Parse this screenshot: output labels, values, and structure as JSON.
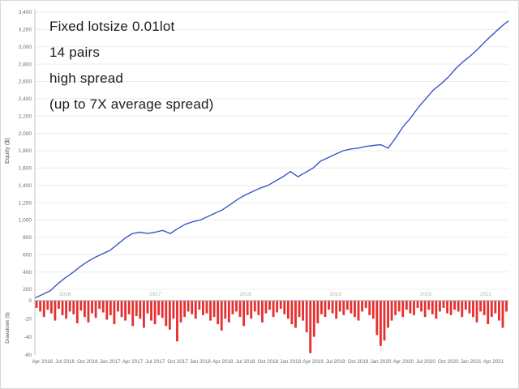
{
  "annotation": {
    "lines": [
      "Fixed lotsize 0.01lot",
      "14 pairs",
      "high spread",
      "(up to 7X average spread)"
    ]
  },
  "colors": {
    "equity_line": "#3b55c9",
    "drawdown_bar": "#e82f2f",
    "grid": "#ececec",
    "axis": "#c0c0c0",
    "zero_line": "#9a9a9a",
    "tick_text": "#6b6b6b",
    "year_text": "#b5b5b5",
    "axis_label_text": "#555555"
  },
  "chart_data": [
    {
      "type": "line",
      "title": "",
      "xlabel": "",
      "ylabel": "Equity ($)",
      "ylim": [
        100,
        3400
      ],
      "yticks": [
        200,
        400,
        600,
        800,
        1000,
        1200,
        1400,
        1600,
        1800,
        2000,
        2200,
        2400,
        2600,
        2800,
        3000,
        3200,
        3400
      ],
      "grid": true,
      "x_start": "2016-03",
      "x_end": "2021-06",
      "x_resolution": "monthly",
      "xticklabels": [
        "Apr 2016",
        "Jul 2016",
        "Oct 2016",
        "Jan 2017",
        "Apr 2017",
        "Jul 2017",
        "Oct 2017",
        "Jan 2018",
        "Apr 2018",
        "Jul 2018",
        "Oct 2018",
        "Jan 2019",
        "Apr 2019",
        "Jul 2019",
        "Oct 2019",
        "Jan 2020",
        "Apr 2020",
        "Jul 2020",
        "Oct 2020",
        "Jan 2021",
        "Apr 2021"
      ],
      "xtick_month_indices": [
        1,
        4,
        7,
        10,
        13,
        16,
        19,
        22,
        25,
        28,
        31,
        34,
        37,
        40,
        43,
        46,
        49,
        52,
        55,
        58,
        61
      ],
      "year_labels": [
        "2016",
        "2017",
        "2018",
        "2019",
        "2020",
        "2021"
      ],
      "year_label_month_indices": [
        4,
        16,
        28,
        40,
        52,
        60
      ],
      "series": [
        {
          "name": "Equity",
          "values": [
            100,
            140,
            180,
            260,
            330,
            390,
            460,
            520,
            570,
            610,
            650,
            720,
            790,
            845,
            860,
            845,
            860,
            880,
            845,
            900,
            950,
            980,
            1000,
            1040,
            1080,
            1120,
            1180,
            1240,
            1290,
            1330,
            1370,
            1400,
            1450,
            1500,
            1560,
            1500,
            1550,
            1600,
            1680,
            1720,
            1760,
            1800,
            1820,
            1830,
            1850,
            1860,
            1870,
            1830,
            1950,
            2080,
            2180,
            2300,
            2400,
            2500,
            2570,
            2650,
            2750,
            2830,
            2900,
            2980,
            3070,
            3150,
            3230,
            3300
          ]
        }
      ]
    },
    {
      "type": "bar",
      "title": "",
      "xlabel": "",
      "ylabel": "Drawdown ($)",
      "ylim": [
        -60,
        0
      ],
      "yticks": [
        0,
        -20,
        -40,
        -60
      ],
      "x_start": "2016-03",
      "x_end": "2021-06",
      "x_resolution": "semi-monthly",
      "values": [
        -8,
        -12,
        -18,
        -10,
        -14,
        -22,
        -9,
        -16,
        -20,
        -12,
        -15,
        -25,
        -11,
        -18,
        -24,
        -14,
        -19,
        -9,
        -13,
        -21,
        -16,
        -26,
        -12,
        -18,
        -22,
        -15,
        -28,
        -17,
        -20,
        -30,
        -14,
        -22,
        -26,
        -16,
        -19,
        -28,
        -32,
        -20,
        -45,
        -24,
        -18,
        -12,
        -15,
        -20,
        -10,
        -16,
        -14,
        -22,
        -18,
        -26,
        -33,
        -20,
        -24,
        -15,
        -12,
        -18,
        -28,
        -16,
        -20,
        -12,
        -16,
        -24,
        -14,
        -10,
        -18,
        -13,
        -9,
        -15,
        -20,
        -26,
        -30,
        -18,
        -22,
        -35,
        -58,
        -40,
        -25,
        -15,
        -18,
        -10,
        -14,
        -20,
        -12,
        -16,
        -10,
        -14,
        -18,
        -22,
        -12,
        -8,
        -16,
        -20,
        -38,
        -50,
        -44,
        -30,
        -22,
        -16,
        -12,
        -18,
        -10,
        -14,
        -16,
        -8,
        -12,
        -18,
        -10,
        -15,
        -20,
        -12,
        -8,
        -14,
        -16,
        -10,
        -12,
        -18,
        -10,
        -14,
        -18,
        -24,
        -12,
        -16,
        -26,
        -18,
        -14,
        -22,
        -30,
        -12
      ]
    }
  ]
}
